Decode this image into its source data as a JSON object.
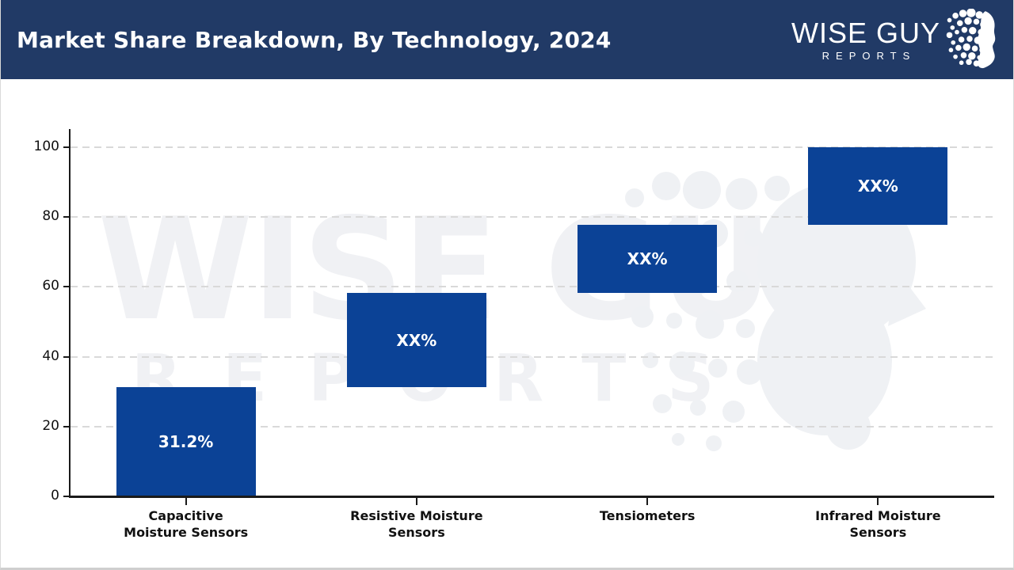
{
  "header": {
    "title": "Market Share Breakdown, By Technology, 2024",
    "logo": {
      "primary": "WISE GUY",
      "secondary": "REPORTS"
    }
  },
  "watermark": {
    "primary": "WISE GUY",
    "secondary": "REPORTS"
  },
  "colors": {
    "header_bg": "#213a66",
    "bar": "#0b4296",
    "bar_label": "#ffffff",
    "grid": "#d9d9d9",
    "axis": "#1a1a1a",
    "watermark": "#f0f1f4"
  },
  "chart_data": {
    "type": "bar",
    "subtype": "waterfall-floating-bars",
    "title": "Market Share Breakdown, By Technology, 2024",
    "categories": [
      "Capacitive\nMoisture Sensors",
      "Resistive Moisture\nSensors",
      "Tensiometers",
      "Infrared Moisture\nSensors"
    ],
    "bases": [
      0,
      31.2,
      58.3,
      77.8
    ],
    "values": [
      31.2,
      27.1,
      19.5,
      22.2
    ],
    "bar_labels": [
      "31.2%",
      "XX%",
      "XX%",
      "XX%"
    ],
    "ylim": [
      0,
      100
    ],
    "yticks": [
      0,
      20,
      40,
      60,
      80,
      100
    ],
    "grid": "horizontal-dashed",
    "legend": "none"
  }
}
